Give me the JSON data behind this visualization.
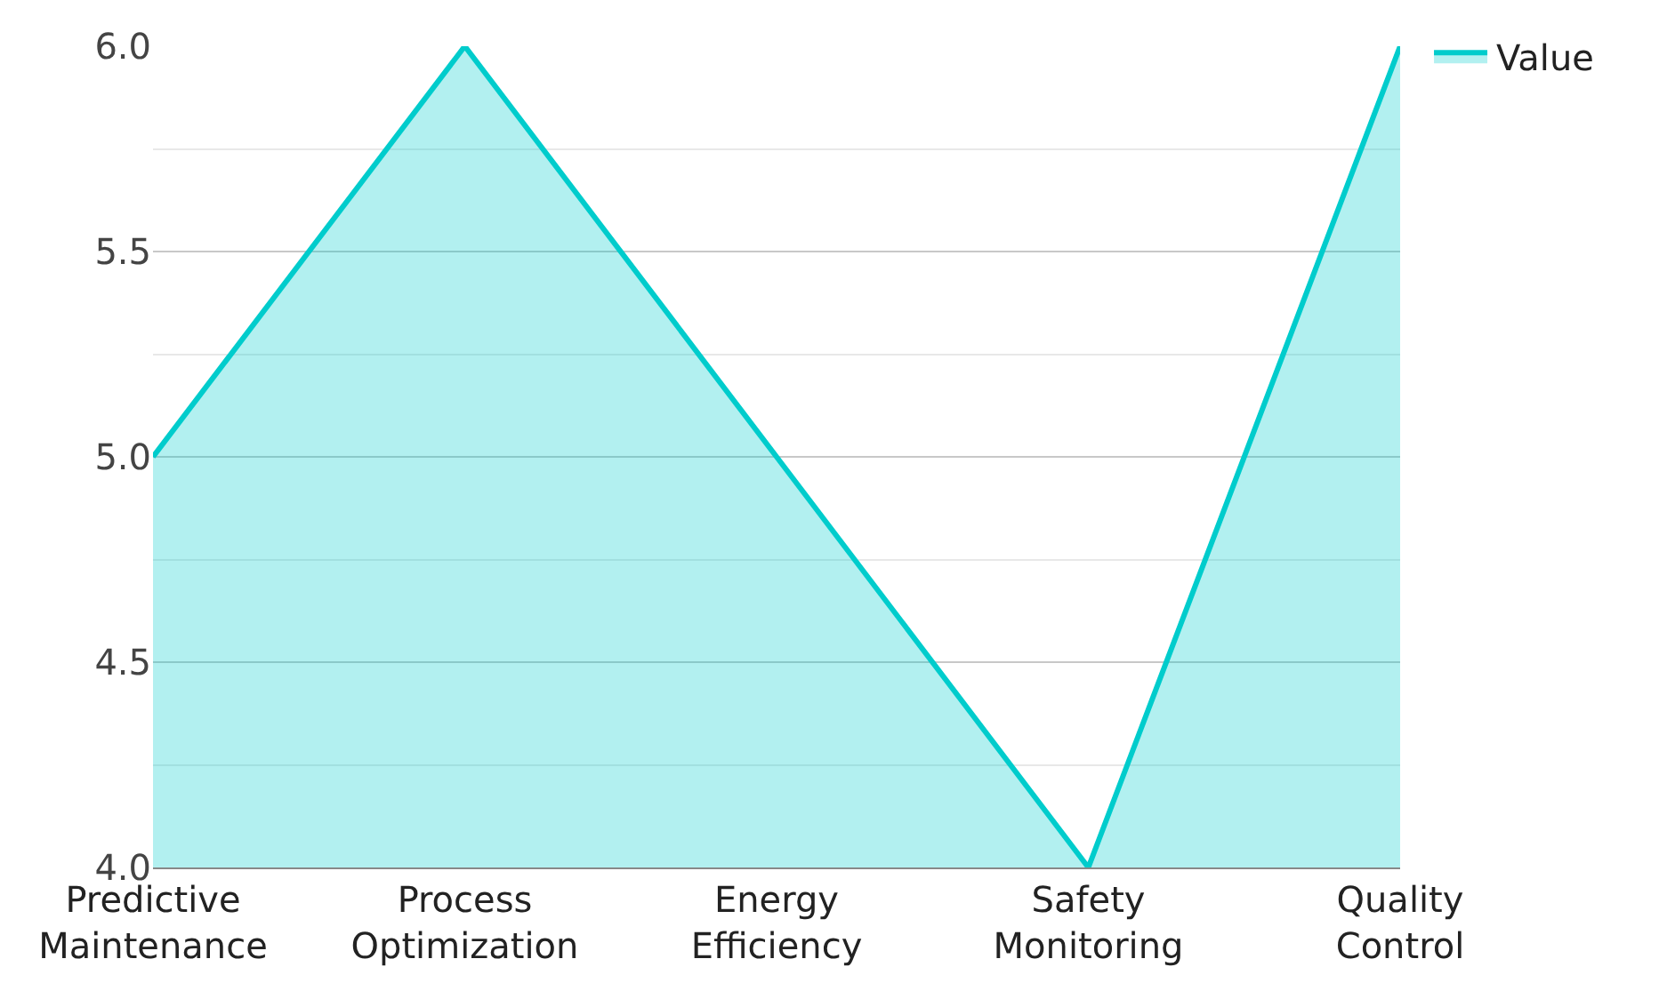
{
  "chart_data": {
    "type": "area",
    "categories": [
      "Predictive Maintenance",
      "Process Optimization",
      "Energy Efficiency",
      "Safety Monitoring",
      "Quality Control"
    ],
    "series": [
      {
        "name": "Value",
        "color": "#00cccc",
        "values": [
          5,
          6,
          5,
          4,
          6
        ]
      }
    ],
    "ylim": [
      4,
      6
    ],
    "yticks": [
      {
        "value": 4,
        "label": "4.0"
      },
      {
        "value": 4.25,
        "label": null
      },
      {
        "value": 4.5,
        "label": "4.5"
      },
      {
        "value": 4.75,
        "label": null
      },
      {
        "value": 5,
        "label": "5.0"
      },
      {
        "value": 5.25,
        "label": null
      },
      {
        "value": 5.5,
        "label": "5.5"
      },
      {
        "value": 5.75,
        "label": null
      },
      {
        "value": 6,
        "label": "6.0"
      }
    ],
    "grid": "y",
    "legend": "top right",
    "marker": "none",
    "line_style": "solid"
  }
}
